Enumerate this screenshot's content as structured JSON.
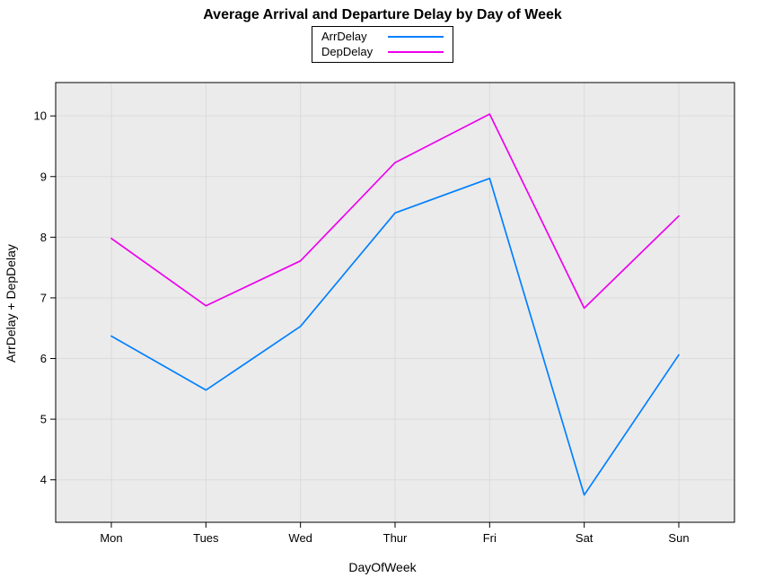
{
  "title": "Average Arrival and Departure Delay by Day of Week",
  "legend": {
    "entries": [
      {
        "label": "ArrDelay",
        "color": "#0080FF"
      },
      {
        "label": "DepDelay",
        "color": "#EE00EE"
      }
    ]
  },
  "chart_data": {
    "type": "line",
    "title": "Average Arrival and Departure Delay by Day of Week",
    "xlabel": "DayOfWeek",
    "ylabel": "ArrDelay + DepDelay",
    "categories": [
      "Mon",
      "Tues",
      "Wed",
      "Thur",
      "Fri",
      "Sat",
      "Sun"
    ],
    "series": [
      {
        "name": "ArrDelay",
        "color": "#0080FF",
        "values": [
          6.37,
          5.48,
          6.53,
          8.4,
          8.97,
          3.75,
          6.06
        ]
      },
      {
        "name": "DepDelay",
        "color": "#EE00EE",
        "values": [
          7.98,
          6.87,
          7.61,
          9.23,
          10.03,
          6.83,
          8.35
        ]
      }
    ],
    "yticks": [
      4,
      5,
      6,
      7,
      8,
      9,
      10
    ],
    "ylim": [
      3.3,
      10.55
    ],
    "grid": true,
    "legend_position": "top",
    "panel_bg": "#EBEBEB",
    "grid_color": "#DBDBDB",
    "axis_color": "#000000",
    "tick_label_color": "#000000"
  }
}
